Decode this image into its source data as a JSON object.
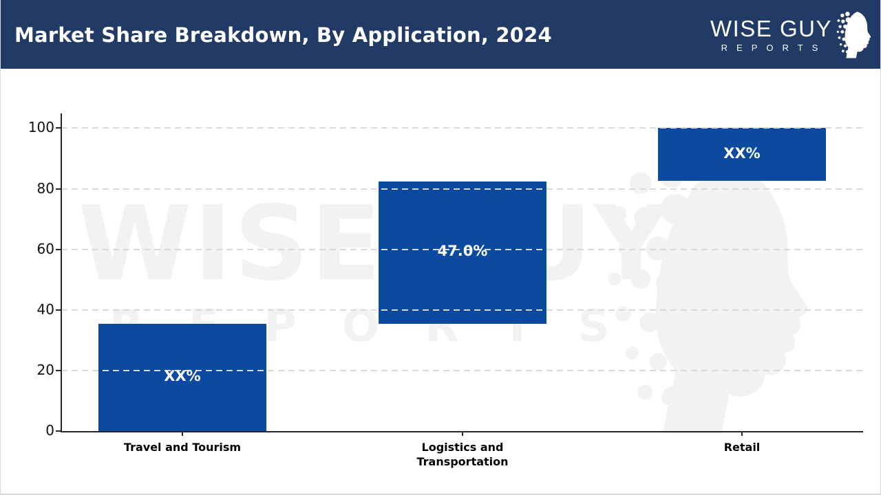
{
  "header": {
    "title": "Market Share Breakdown, By Application, 2024",
    "logo": {
      "brand": "WISE GUY",
      "sub": "REPORTS"
    }
  },
  "watermark": {
    "brand": "WISE GUY",
    "sub": "REPORTS"
  },
  "chart_data": {
    "type": "bar",
    "subtype": "floating-segment-bars",
    "title": "Market Share Breakdown, By Application, 2024",
    "categories": [
      "Travel and Tourism",
      "Logistics and Transportation",
      "Retail"
    ],
    "segments": [
      {
        "category": "Travel and Tourism",
        "start": 0,
        "end": 35.5,
        "label": "XX%"
      },
      {
        "category": "Logistics and Transportation",
        "start": 35.5,
        "end": 82.5,
        "label": "47.0%"
      },
      {
        "category": "Retail",
        "start": 82.5,
        "end": 100,
        "label": "XX%"
      }
    ],
    "yticks": [
      0,
      20,
      40,
      60,
      80,
      100
    ],
    "ylim": [
      0,
      105
    ],
    "xlabel": "",
    "ylabel": "",
    "grid": "dashed-horizontal-over-bars",
    "legend": "none",
    "bar_color": "#0b4a9f",
    "value_label_color": "#ffffff"
  },
  "colors": {
    "header_bg": "#213a66",
    "bar": "#0b4a9f",
    "grid": "#d9d9d9",
    "axis": "#262626",
    "watermark": "#f2f2f2"
  }
}
